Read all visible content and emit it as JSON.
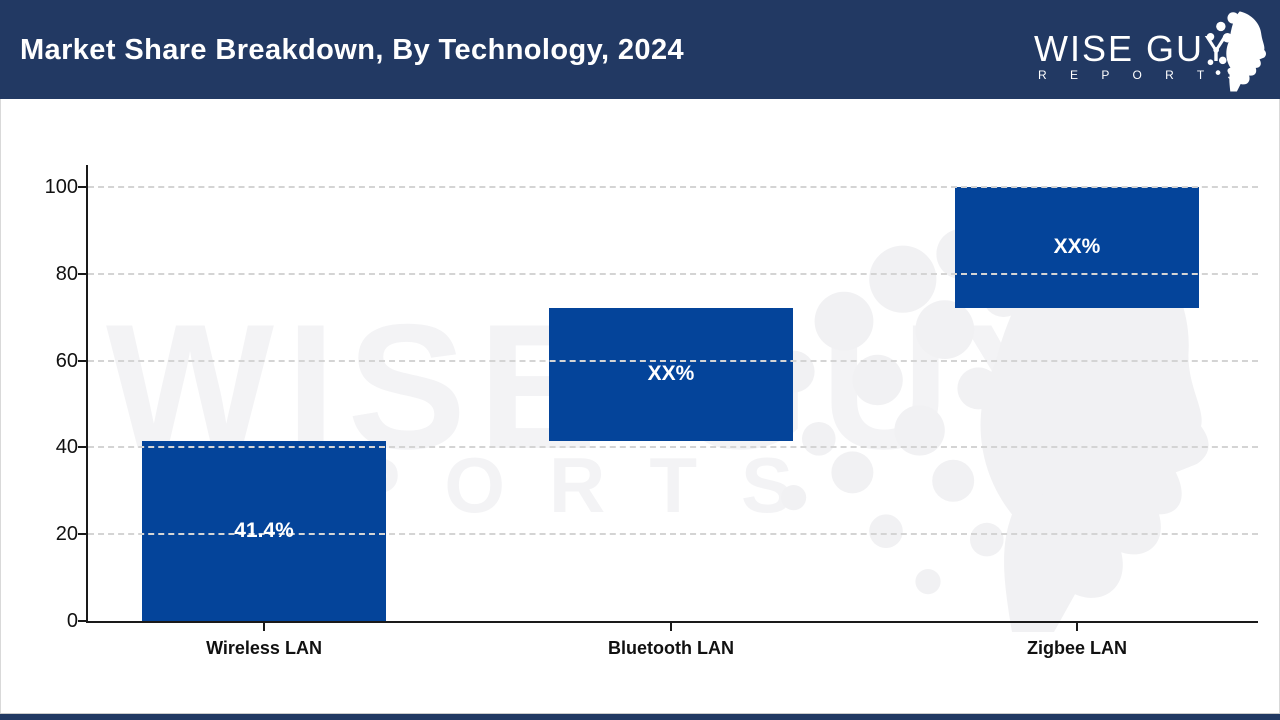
{
  "header": {
    "title": "Market Share Breakdown, By Technology, 2024",
    "logo": {
      "line1": "WISE GUY",
      "line2": "R E P O R T S"
    }
  },
  "watermark": {
    "line1": "WISE GUY",
    "line2": "REPORTS"
  },
  "chart_data": {
    "type": "bar",
    "subtype": "waterfall",
    "title": "Market Share Breakdown, By Technology, 2024",
    "categories": [
      "Wireless LAN",
      "Bluetooth LAN",
      "Zigbee LAN"
    ],
    "bars": [
      {
        "category": "Wireless LAN",
        "start": 0,
        "end": 41.4,
        "label": "41.4%"
      },
      {
        "category": "Bluetooth LAN",
        "start": 41.4,
        "end": 72.2,
        "label": "XX%"
      },
      {
        "category": "Zigbee LAN",
        "start": 72.2,
        "end": 100,
        "label": "XX%"
      }
    ],
    "y_axis": {
      "min": 0,
      "max": 100,
      "ticks": [
        0,
        20,
        40,
        60,
        80,
        100
      ]
    },
    "xlabel": "",
    "ylabel": "",
    "grid": "horizontal-dashed, drawn above bars",
    "legend": "none",
    "bar_color": "#04449a",
    "bar_label_color": "#ffffff",
    "header_bg_color": "#223963",
    "watermark_color": "#f3f3f5"
  }
}
